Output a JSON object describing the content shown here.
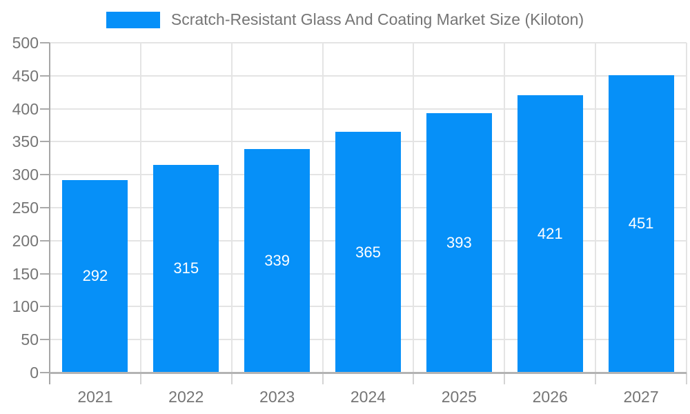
{
  "chart_data": {
    "type": "bar",
    "title": "Scratch-Resistant Glass And Coating Market Size (Kiloton)",
    "categories": [
      "2021",
      "2022",
      "2023",
      "2024",
      "2025",
      "2026",
      "2027"
    ],
    "values": [
      292,
      315,
      339,
      365,
      393,
      421,
      451
    ],
    "xlabel": "",
    "ylabel": "",
    "ylim": [
      0,
      500
    ],
    "ytick_step": 50,
    "ytick_labels": [
      "0",
      "50",
      "100",
      "150",
      "200",
      "250",
      "300",
      "350",
      "400",
      "450",
      "500"
    ],
    "grid": true,
    "legend_position": "top-center",
    "bar_color": "#0690f8",
    "bar_label_color": "#ffffff",
    "axis_text_color": "#757575"
  }
}
